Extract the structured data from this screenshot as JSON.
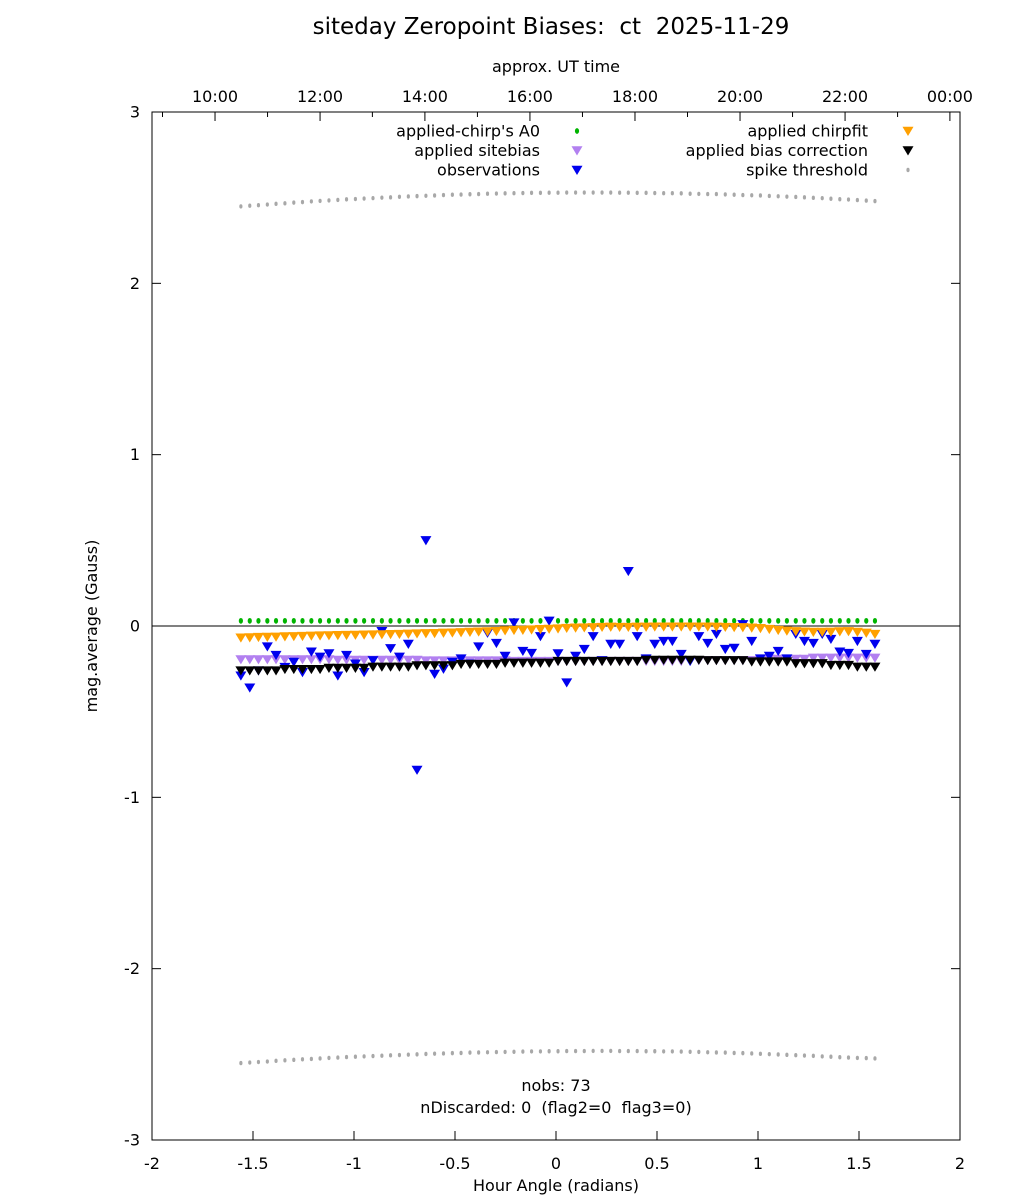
{
  "title": "siteday Zeropoint Biases:  ct  2025-11-29",
  "top_axis": {
    "label": "approx. UT time",
    "ticks": [
      {
        "label": "10:00",
        "h": -1.688
      },
      {
        "label": "12:00",
        "h": -1.168
      },
      {
        "label": "14:00",
        "h": -0.649
      },
      {
        "label": "16:00",
        "h": -0.129
      },
      {
        "label": "18:00",
        "h": 0.391
      },
      {
        "label": "20:00",
        "h": 0.911
      },
      {
        "label": "22:00",
        "h": 1.431
      },
      {
        "label": "00:00",
        "h": 1.95
      }
    ],
    "minor_ticks_h": [
      -1.948,
      -1.428,
      -0.909,
      -0.389,
      0.131,
      0.651,
      1.171,
      1.691
    ]
  },
  "x_axis": {
    "label": "Hour Angle (radians)",
    "ticks": [
      -2,
      -1.5,
      -1,
      -0.5,
      0,
      0.5,
      1,
      1.5,
      2
    ]
  },
  "y_axis": {
    "label": "mag.average (Gauss)",
    "ticks": [
      -3,
      -2,
      -1,
      0,
      1,
      2,
      3
    ]
  },
  "annotations": {
    "nobs": "nobs: 73",
    "ndiscarded": "nDiscarded: 0  (flag2=0  flag3=0)"
  },
  "stats": {
    "nobs": 73,
    "nDiscarded": 0,
    "flag2": 0,
    "flag3": 0
  },
  "legend": {
    "columns": [
      {
        "entries": [
          {
            "label": "applied-chirp's A0",
            "series": "a0"
          },
          {
            "label": "applied sitebias",
            "series": "sitebias"
          },
          {
            "label": "observations",
            "series": "observations"
          }
        ]
      },
      {
        "entries": [
          {
            "label": "applied chirpfit",
            "series": "chirpfit"
          },
          {
            "label": "applied bias correction",
            "series": "bias_correction"
          },
          {
            "label": "spike threshold",
            "series": "spike_threshold"
          }
        ]
      }
    ]
  },
  "colors": {
    "green": "#00b400",
    "violet": "#b280f0",
    "blue": "#0000ee",
    "orange": "#ffa000",
    "black": "#000000",
    "gray": "#a8a8a8",
    "frame": "#000000",
    "background": "#ffffff"
  },
  "chart_data": {
    "type": "scatter",
    "title": "siteday Zeropoint Biases:  ct  2025-11-29",
    "xlabel": "Hour Angle (radians)",
    "x2label": "approx. UT time",
    "ylabel": "mag.average (Gauss)",
    "xlim": [
      -2,
      2
    ],
    "ylim": [
      -3,
      3
    ],
    "grid": false,
    "legend_position": "top-inside-two-columns",
    "x_values": [
      -1.56,
      -1.516,
      -1.473,
      -1.429,
      -1.386,
      -1.342,
      -1.298,
      -1.255,
      -1.211,
      -1.168,
      -1.124,
      -1.08,
      -1.037,
      -0.993,
      -0.95,
      -0.906,
      -0.862,
      -0.819,
      -0.775,
      -0.731,
      -0.688,
      -0.644,
      -0.601,
      -0.557,
      -0.513,
      -0.47,
      -0.426,
      -0.383,
      -0.339,
      -0.295,
      -0.252,
      -0.208,
      -0.164,
      -0.121,
      -0.077,
      -0.034,
      0.01,
      0.053,
      0.097,
      0.14,
      0.184,
      0.228,
      0.271,
      0.315,
      0.358,
      0.402,
      0.446,
      0.489,
      0.533,
      0.576,
      0.62,
      0.664,
      0.707,
      0.751,
      0.794,
      0.838,
      0.882,
      0.925,
      0.969,
      1.012,
      1.056,
      1.1,
      1.143,
      1.187,
      1.23,
      1.274,
      1.318,
      1.361,
      1.405,
      1.448,
      1.492,
      1.536,
      1.579
    ],
    "series": [
      {
        "name": "applied-chirp's A0",
        "key": "a0",
        "marker": "dot",
        "color": "#00b400",
        "constant": 0.03
      },
      {
        "name": "applied sitebias",
        "key": "sitebias",
        "marker": "triangle-down",
        "color": "#b280f0",
        "values": [
          -0.195,
          -0.195,
          -0.195,
          -0.195,
          -0.195,
          -0.195,
          -0.195,
          -0.195,
          -0.195,
          -0.195,
          -0.195,
          -0.198,
          -0.198,
          -0.198,
          -0.198,
          -0.198,
          -0.198,
          -0.198,
          -0.198,
          -0.198,
          -0.198,
          -0.202,
          -0.202,
          -0.202,
          -0.202,
          -0.202,
          -0.202,
          -0.202,
          -0.202,
          -0.202,
          -0.202,
          -0.205,
          -0.205,
          -0.205,
          -0.205,
          -0.205,
          -0.205,
          -0.205,
          -0.205,
          -0.205,
          -0.205,
          -0.205,
          -0.205,
          -0.205,
          -0.205,
          -0.205,
          -0.205,
          -0.205,
          -0.205,
          -0.205,
          -0.205,
          -0.2,
          -0.2,
          -0.2,
          -0.2,
          -0.2,
          -0.2,
          -0.2,
          -0.2,
          -0.192,
          -0.192,
          -0.192,
          -0.192,
          -0.192,
          -0.192,
          -0.186,
          -0.186,
          -0.186,
          -0.186,
          -0.186,
          -0.186,
          -0.186,
          -0.186
        ]
      },
      {
        "name": "observations",
        "key": "observations",
        "marker": "triangle-down",
        "color": "#0000ee",
        "values": [
          -0.29,
          -0.36,
          -0.26,
          -0.12,
          -0.17,
          -0.24,
          -0.21,
          -0.27,
          -0.15,
          -0.18,
          -0.16,
          -0.29,
          -0.17,
          -0.22,
          -0.27,
          -0.2,
          -0.03,
          -0.13,
          -0.18,
          -0.105,
          -0.84,
          0.5,
          -0.28,
          -0.25,
          -0.21,
          -0.19,
          -0.22,
          -0.12,
          -0.04,
          -0.1,
          -0.175,
          0.02,
          -0.146,
          -0.158,
          -0.06,
          0.03,
          -0.16,
          -0.33,
          -0.175,
          -0.135,
          -0.06,
          -0.2,
          -0.105,
          -0.105,
          0.32,
          -0.06,
          -0.19,
          -0.105,
          -0.088,
          -0.088,
          -0.164,
          -0.205,
          -0.06,
          -0.1,
          -0.047,
          -0.135,
          -0.128,
          0.01,
          -0.088,
          -0.19,
          -0.175,
          -0.146,
          -0.19,
          -0.047,
          -0.088,
          -0.1,
          -0.047,
          -0.076,
          -0.15,
          -0.158,
          -0.088,
          -0.164,
          -0.105
        ]
      },
      {
        "name": "applied chirpfit",
        "key": "chirpfit",
        "marker": "triangle-down",
        "color": "#ffa000",
        "values": [
          -0.068,
          -0.067,
          -0.065,
          -0.064,
          -0.063,
          -0.061,
          -0.06,
          -0.059,
          -0.057,
          -0.056,
          -0.055,
          -0.054,
          -0.053,
          -0.052,
          -0.051,
          -0.05,
          -0.049,
          -0.048,
          -0.047,
          -0.046,
          -0.044,
          -0.043,
          -0.042,
          -0.04,
          -0.039,
          -0.037,
          -0.035,
          -0.033,
          -0.032,
          -0.03,
          -0.026,
          -0.024,
          -0.023,
          -0.021,
          -0.019,
          -0.017,
          -0.015,
          -0.012,
          -0.01,
          -0.009,
          -0.008,
          -0.006,
          -0.005,
          -0.006,
          -0.006,
          -0.005,
          -0.005,
          -0.004,
          -0.004,
          -0.004,
          -0.004,
          -0.004,
          -0.004,
          -0.004,
          -0.005,
          -0.006,
          -0.007,
          -0.008,
          -0.01,
          -0.013,
          -0.018,
          -0.024,
          -0.028,
          -0.031,
          -0.033,
          -0.035,
          -0.035,
          -0.034,
          -0.032,
          -0.031,
          -0.035,
          -0.04,
          -0.047
        ]
      },
      {
        "name": "applied bias correction",
        "key": "bias_correction",
        "marker": "triangle-down",
        "color": "#000000",
        "values": [
          -0.26,
          -0.26,
          -0.26,
          -0.26,
          -0.26,
          -0.252,
          -0.252,
          -0.252,
          -0.252,
          -0.252,
          -0.245,
          -0.245,
          -0.245,
          -0.245,
          -0.245,
          -0.238,
          -0.238,
          -0.238,
          -0.238,
          -0.238,
          -0.23,
          -0.23,
          -0.23,
          -0.23,
          -0.23,
          -0.222,
          -0.222,
          -0.222,
          -0.222,
          -0.222,
          -0.215,
          -0.215,
          -0.215,
          -0.215,
          -0.215,
          -0.215,
          -0.205,
          -0.205,
          -0.205,
          -0.205,
          -0.205,
          -0.205,
          -0.205,
          -0.205,
          -0.205,
          -0.205,
          -0.198,
          -0.198,
          -0.198,
          -0.198,
          -0.198,
          -0.198,
          -0.198,
          -0.2,
          -0.2,
          -0.2,
          -0.2,
          -0.2,
          -0.208,
          -0.208,
          -0.208,
          -0.208,
          -0.208,
          -0.218,
          -0.218,
          -0.218,
          -0.218,
          -0.228,
          -0.228,
          -0.228,
          -0.238,
          -0.238,
          -0.238
        ]
      },
      {
        "name": "spike threshold (upper)",
        "key": "spike_threshold",
        "marker": "small-dot",
        "color": "#a8a8a8",
        "values": [
          2.449,
          2.453,
          2.456,
          2.46,
          2.464,
          2.467,
          2.471,
          2.474,
          2.478,
          2.481,
          2.484,
          2.487,
          2.49,
          2.492,
          2.495,
          2.497,
          2.5,
          2.502,
          2.505,
          2.507,
          2.509,
          2.511,
          2.513,
          2.515,
          2.517,
          2.518,
          2.52,
          2.521,
          2.523,
          2.524,
          2.525,
          2.526,
          2.527,
          2.528,
          2.528,
          2.529,
          2.529,
          2.53,
          2.53,
          2.53,
          2.53,
          2.53,
          2.53,
          2.529,
          2.529,
          2.528,
          2.528,
          2.527,
          2.526,
          2.526,
          2.525,
          2.523,
          2.522,
          2.521,
          2.521,
          2.519,
          2.517,
          2.515,
          2.514,
          2.513,
          2.51,
          2.508,
          2.506,
          2.504,
          2.502,
          2.499,
          2.497,
          2.494,
          2.491,
          2.489,
          2.486,
          2.483,
          2.48
        ]
      },
      {
        "name": "spike threshold (lower)",
        "key": "spike_threshold_lower",
        "marker": "small-dot",
        "color": "#a8a8a8",
        "values": [
          -2.551,
          -2.548,
          -2.545,
          -2.542,
          -2.538,
          -2.535,
          -2.532,
          -2.529,
          -2.527,
          -2.524,
          -2.521,
          -2.519,
          -2.516,
          -2.514,
          -2.512,
          -2.51,
          -2.508,
          -2.506,
          -2.504,
          -2.502,
          -2.5,
          -2.498,
          -2.496,
          -2.495,
          -2.493,
          -2.492,
          -2.49,
          -2.489,
          -2.488,
          -2.487,
          -2.486,
          -2.485,
          -2.484,
          -2.483,
          -2.483,
          -2.482,
          -2.482,
          -2.481,
          -2.481,
          -2.481,
          -2.48,
          -2.48,
          -2.48,
          -2.481,
          -2.481,
          -2.481,
          -2.482,
          -2.482,
          -2.483,
          -2.483,
          -2.484,
          -2.485,
          -2.486,
          -2.488,
          -2.489,
          -2.49,
          -2.492,
          -2.493,
          -2.495,
          -2.497,
          -2.499,
          -2.501,
          -2.503,
          -2.505,
          -2.507,
          -2.509,
          -2.512,
          -2.514,
          -2.517,
          -2.519,
          -2.521,
          -2.522,
          -2.524
        ]
      }
    ]
  }
}
